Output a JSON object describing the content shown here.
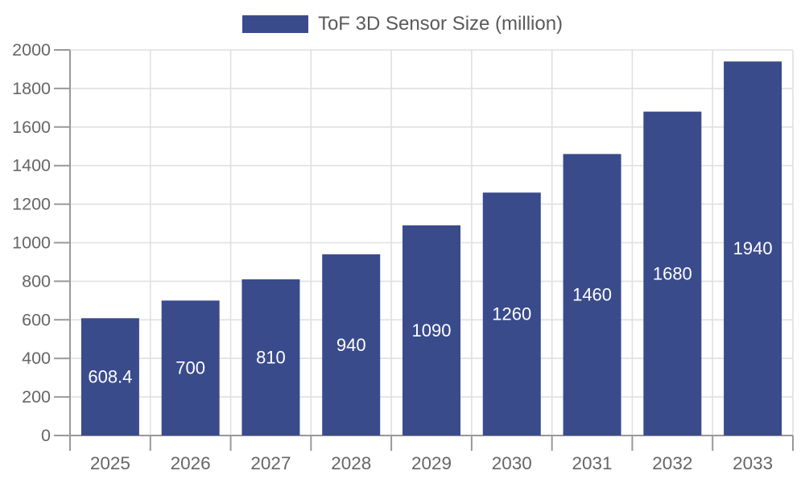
{
  "chart_data": {
    "type": "bar",
    "title": "",
    "legend": "ToF 3D Sensor Size (million)",
    "categories": [
      "2025",
      "2026",
      "2027",
      "2028",
      "2029",
      "2030",
      "2031",
      "2032",
      "2033"
    ],
    "values": [
      608.4,
      700,
      810,
      940,
      1090,
      1260,
      1460,
      1680,
      1940
    ],
    "value_labels": [
      "608.4",
      "700",
      "810",
      "940",
      "1090",
      "1260",
      "1460",
      "1680",
      "1940"
    ],
    "xlabel": "",
    "ylabel": "",
    "ylim": [
      0,
      2000
    ],
    "ytick_step": 200,
    "grid": true,
    "legend_position": "top-center",
    "colors": {
      "bar": "#3A4B8C",
      "value_label": "#FFFFFF",
      "gridline": "#E0E0E0",
      "axis": "#999999",
      "tick_label": "#666666",
      "legend_text": "#5A5A5A"
    }
  }
}
